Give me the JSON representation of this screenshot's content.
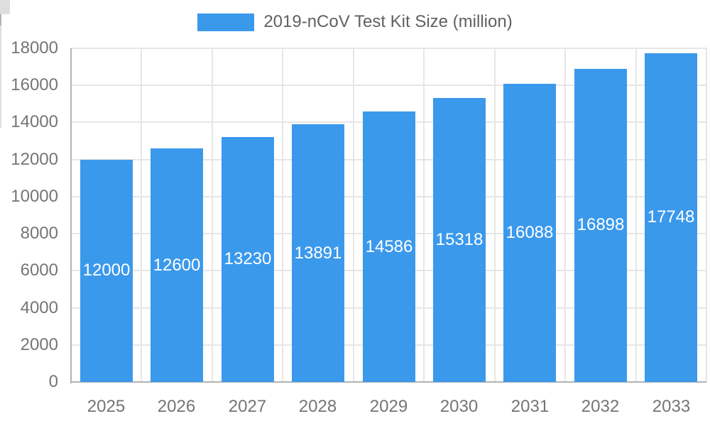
{
  "chart_data": {
    "type": "bar",
    "title": "",
    "legend": [
      "2019-nCoV Test Kit Size (million)"
    ],
    "legend_position": "top-center",
    "categories": [
      "2025",
      "2026",
      "2027",
      "2028",
      "2029",
      "2030",
      "2031",
      "2032",
      "2033"
    ],
    "values": [
      12000,
      12600,
      13230,
      13891,
      14586,
      15318,
      16088,
      16898,
      17748
    ],
    "xlabel": "",
    "ylabel": "",
    "ylim": [
      0,
      18000
    ],
    "ytick_step": 2000,
    "yticks": [
      0,
      2000,
      4000,
      6000,
      8000,
      10000,
      12000,
      14000,
      16000,
      18000
    ],
    "grid": true,
    "bar_value_labels": "inside-center",
    "colors": {
      "bar": "#3B99EC",
      "grid": "#e6e6e6",
      "axis_line": "#b3b3b3",
      "tick": "#dedede",
      "axis_text": "#757575",
      "legend_text": "#616161",
      "value_label_text": "#ffffff",
      "background": "#ffffff"
    }
  }
}
